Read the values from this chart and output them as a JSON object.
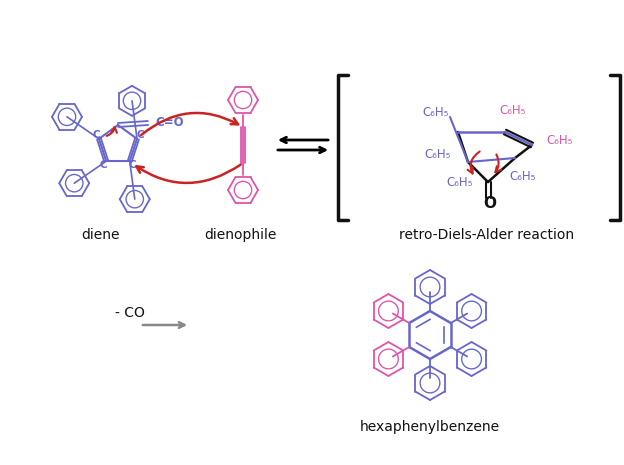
{
  "bg_color": "#ffffff",
  "blue": "#6666cc",
  "pink": "#dd55aa",
  "red": "#cc2222",
  "black": "#111111",
  "gray": "#888888",
  "title_diene": "diene",
  "title_dienophile": "dienophile",
  "title_retro": "retro-Diels-Alder reaction",
  "title_hex": "hexaphenylbenzene",
  "label_co": "- CO"
}
